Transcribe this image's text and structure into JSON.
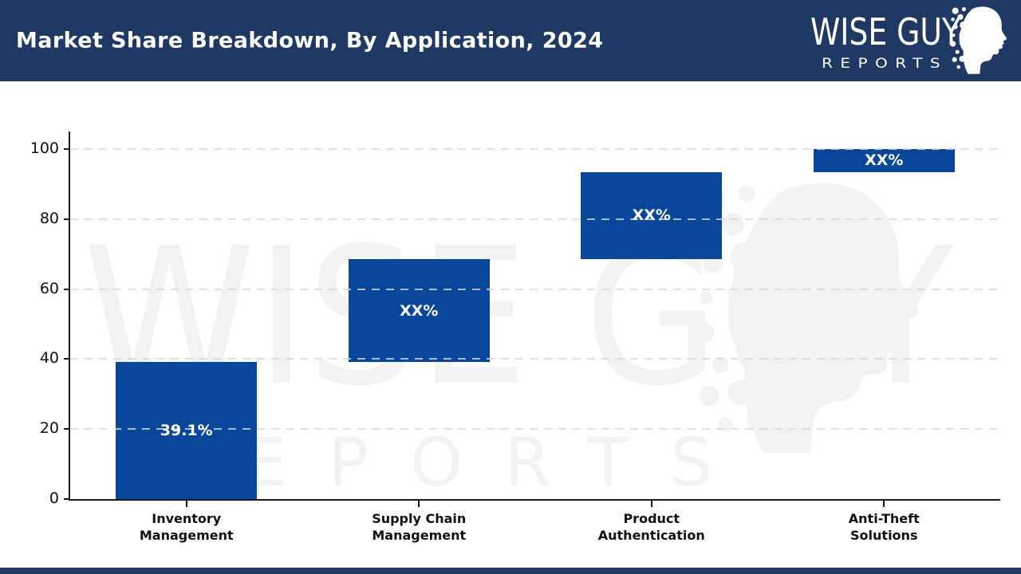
{
  "header": {
    "title": "Market Share Breakdown, By Application, 2024",
    "logo": {
      "wordmark": "WISE GUY",
      "subtext": "REPORTS"
    }
  },
  "watermark": {
    "line1": "WISE GUY",
    "line2": "REPORTS"
  },
  "colors": {
    "header_bg": "#1f3864",
    "bar": "#0a4699",
    "gridline": "#d7d7d7",
    "axis": "#1a1a1a",
    "watermark": "#f2f2f4",
    "bar_label": "#ffffff"
  },
  "chart_data": {
    "type": "bar",
    "subtype": "waterfall",
    "title": "Market Share Breakdown, By Application, 2024",
    "xlabel": "",
    "ylabel": "",
    "ylim": [
      0,
      100
    ],
    "yticks": [
      0,
      20,
      40,
      60,
      80,
      100
    ],
    "grid": "horizontal-dashed",
    "legend": "none",
    "categories": [
      "Inventory\nManagement",
      "Supply Chain\nManagement",
      "Product\nAuthentication",
      "Anti-Theft\nSolutions"
    ],
    "segments": [
      {
        "category": "Inventory\nManagement",
        "start": 0,
        "end": 39.1,
        "label": "39.1%"
      },
      {
        "category": "Supply Chain\nManagement",
        "start": 39.1,
        "end": 68.5,
        "label": "XX%"
      },
      {
        "category": "Product\nAuthentication",
        "start": 68.5,
        "end": 93.5,
        "label": "XX%"
      },
      {
        "category": "Anti-Theft\nSolutions",
        "start": 93.5,
        "end": 100,
        "label": "XX%"
      }
    ]
  }
}
